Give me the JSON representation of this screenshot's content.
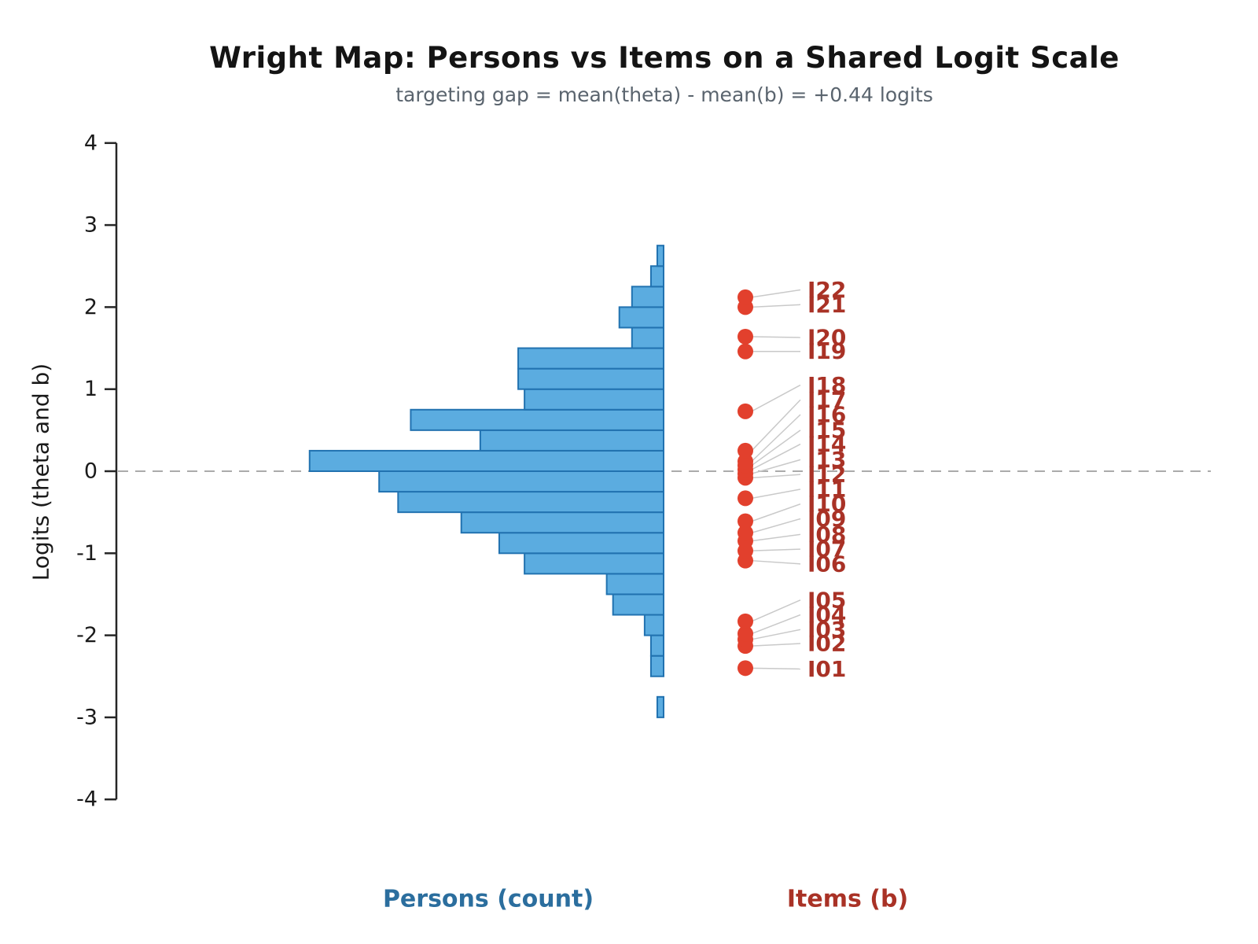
{
  "title": "Wright Map: Persons vs Items on a Shared Logit Scale",
  "subtitle": "targeting gap = mean(theta) - mean(b) = +0.44 logits",
  "y_axis": {
    "label": "Logits (theta and b)",
    "min": -4,
    "max": 4,
    "ticks": [
      4,
      3,
      2,
      1,
      0,
      -1,
      -2,
      -3,
      -4
    ]
  },
  "reference_line": {
    "value": 0,
    "style": "dashed"
  },
  "columns": {
    "persons_label": "Persons (count)",
    "items_label": "Items (b)"
  },
  "colors": {
    "title": "#141414",
    "subtitle": "#5a646e",
    "axis": "#262626",
    "tick_label": "#1a1a1a",
    "bar_fill": "#5bace0",
    "bar_edge": "#2172b0",
    "dot": "#e2402d",
    "item_label": "#a93226",
    "connector": "#c9c9c9",
    "dashed_line": "#ababab",
    "persons_label": "#2b6e9e",
    "items_label": "#a93226"
  },
  "chart_data": [
    {
      "type": "bar",
      "name": "persons_histogram",
      "orientation": "horizontal",
      "value_axis": "Persons (count)",
      "category_axis": "Logits (theta and b)",
      "ylim": [
        -4,
        4
      ],
      "bin_width": 0.25,
      "bins": [
        {
          "lo": -3.0,
          "hi": -2.75,
          "count": 1
        },
        {
          "lo": -2.75,
          "hi": -2.5,
          "count": 0
        },
        {
          "lo": -2.5,
          "hi": -2.25,
          "count": 2
        },
        {
          "lo": -2.25,
          "hi": -2.0,
          "count": 2
        },
        {
          "lo": -2.0,
          "hi": -1.75,
          "count": 3
        },
        {
          "lo": -1.75,
          "hi": -1.5,
          "count": 8
        },
        {
          "lo": -1.5,
          "hi": -1.25,
          "count": 9
        },
        {
          "lo": -1.25,
          "hi": -1.0,
          "count": 22
        },
        {
          "lo": -1.0,
          "hi": -0.75,
          "count": 26
        },
        {
          "lo": -0.75,
          "hi": -0.5,
          "count": 32
        },
        {
          "lo": -0.5,
          "hi": -0.25,
          "count": 42
        },
        {
          "lo": -0.25,
          "hi": 0.0,
          "count": 45
        },
        {
          "lo": 0.0,
          "hi": 0.25,
          "count": 56
        },
        {
          "lo": 0.25,
          "hi": 0.5,
          "count": 29
        },
        {
          "lo": 0.5,
          "hi": 0.75,
          "count": 40
        },
        {
          "lo": 0.75,
          "hi": 1.0,
          "count": 22
        },
        {
          "lo": 1.0,
          "hi": 1.25,
          "count": 23
        },
        {
          "lo": 1.25,
          "hi": 1.5,
          "count": 23
        },
        {
          "lo": 1.5,
          "hi": 1.75,
          "count": 5
        },
        {
          "lo": 1.75,
          "hi": 2.0,
          "count": 7
        },
        {
          "lo": 2.0,
          "hi": 2.25,
          "count": 5
        },
        {
          "lo": 2.25,
          "hi": 2.5,
          "count": 2
        },
        {
          "lo": 2.5,
          "hi": 2.75,
          "count": 1
        }
      ]
    },
    {
      "type": "scatter",
      "name": "item_difficulties",
      "value_axis": "Items (b)",
      "points": [
        {
          "id": "I01",
          "b": -2.4,
          "label_logit": -2.41
        },
        {
          "id": "I02",
          "b": -2.13,
          "label_logit": -2.1
        },
        {
          "id": "I03",
          "b": -2.05,
          "label_logit": -1.93
        },
        {
          "id": "I04",
          "b": -1.98,
          "label_logit": -1.75
        },
        {
          "id": "I05",
          "b": -1.83,
          "label_logit": -1.57
        },
        {
          "id": "I06",
          "b": -1.09,
          "label_logit": -1.13
        },
        {
          "id": "I07",
          "b": -0.97,
          "label_logit": -0.95
        },
        {
          "id": "I08",
          "b": -0.85,
          "label_logit": -0.77
        },
        {
          "id": "I09",
          "b": -0.75,
          "label_logit": -0.58
        },
        {
          "id": "I10",
          "b": -0.61,
          "label_logit": -0.4
        },
        {
          "id": "I11",
          "b": -0.33,
          "label_logit": -0.22
        },
        {
          "id": "I12",
          "b": -0.08,
          "label_logit": -0.04
        },
        {
          "id": "I13",
          "b": -0.03,
          "label_logit": 0.14
        },
        {
          "id": "I14",
          "b": 0.02,
          "label_logit": 0.33
        },
        {
          "id": "I15",
          "b": 0.07,
          "label_logit": 0.5
        },
        {
          "id": "I16",
          "b": 0.12,
          "label_logit": 0.69
        },
        {
          "id": "I17",
          "b": 0.25,
          "label_logit": 0.87
        },
        {
          "id": "I18",
          "b": 0.73,
          "label_logit": 1.05
        },
        {
          "id": "I19",
          "b": 1.46,
          "label_logit": 1.46
        },
        {
          "id": "I20",
          "b": 1.64,
          "label_logit": 1.63
        },
        {
          "id": "I21",
          "b": 2.0,
          "label_logit": 2.03
        },
        {
          "id": "I22",
          "b": 2.12,
          "label_logit": 2.21
        }
      ]
    }
  ]
}
